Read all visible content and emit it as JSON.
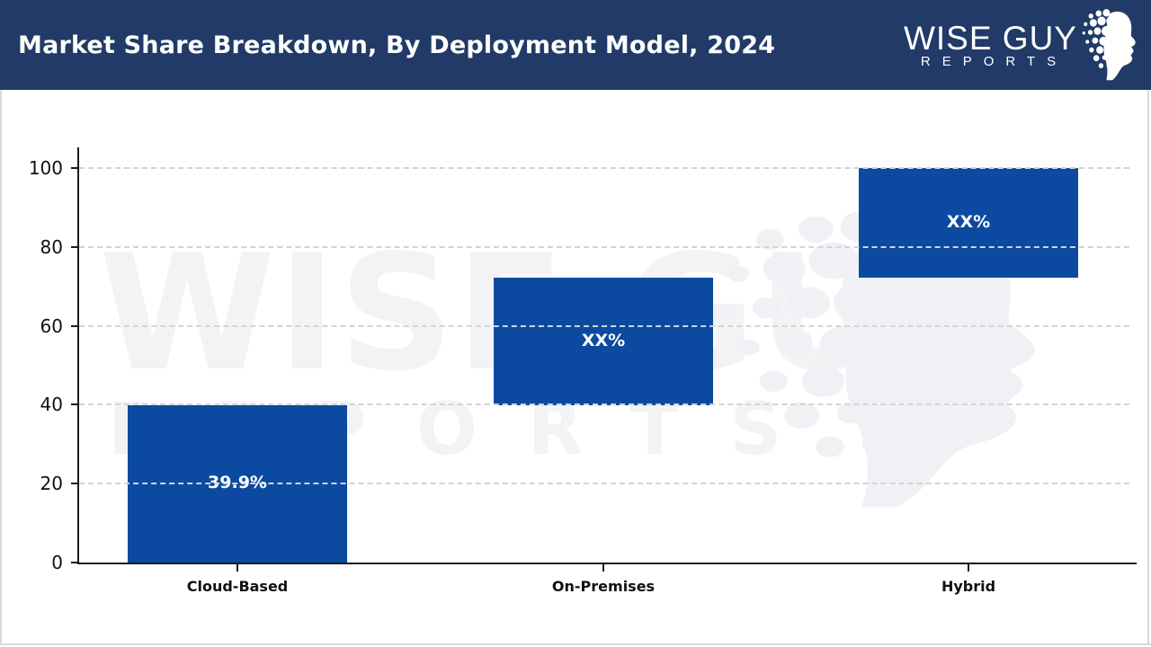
{
  "header": {
    "title": "Market Share Breakdown, By Deployment Model, 2024",
    "logo": {
      "line1": "WISE GUY",
      "line2": "REPORTS"
    }
  },
  "watermark": {
    "line1": "WISE GUY",
    "line2": "REPORTS"
  },
  "chart_data": {
    "type": "bar",
    "subtype": "waterfall",
    "title": "Market Share Breakdown, By Deployment Model, 2024",
    "categories": [
      "Cloud-Based",
      "On-Premises",
      "Hybrid"
    ],
    "segments": [
      {
        "category": "Cloud-Based",
        "label": "39.9%",
        "start": 0,
        "end": 39.9,
        "value_est": 39.9
      },
      {
        "category": "On-Premises",
        "label": "XX%",
        "start": 39.9,
        "end": 72.2,
        "value_est": 32.3
      },
      {
        "category": "Hybrid",
        "label": "XX%",
        "start": 72.2,
        "end": 100,
        "value_est": 27.8
      }
    ],
    "xlabel": "",
    "ylabel": "",
    "ylim": [
      0,
      100
    ],
    "yticks": [
      0,
      20,
      40,
      60,
      80,
      100
    ],
    "grid": "horizontal dashed",
    "legend": "none",
    "bar_color": "#0b4aa0",
    "bar_label_color": "#ffffff"
  },
  "colors": {
    "header_bg": "#213a67",
    "bar": "#0b4aa0",
    "axis": "#1a1a1a",
    "gridline": "#d4d4d4",
    "watermark": "#f2f3f5"
  }
}
